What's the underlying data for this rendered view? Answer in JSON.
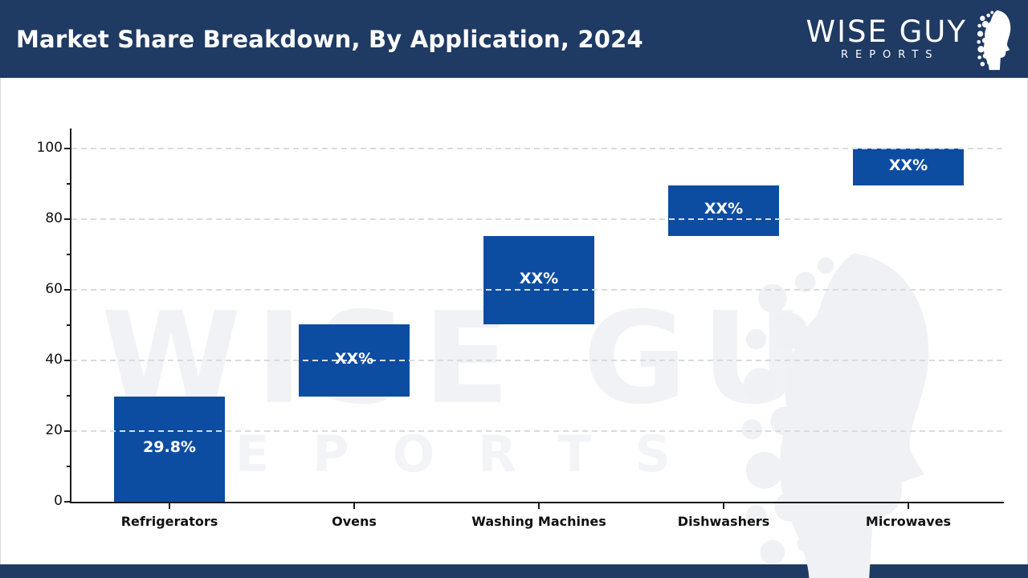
{
  "header": {
    "title": "Market Share Breakdown, By Application, 2024",
    "logo_line1": "WISE GUY",
    "logo_line2": "REPORTS"
  },
  "watermark": {
    "line1": "WISE GUY",
    "line2": "REPORTS"
  },
  "chart_data": {
    "type": "bar",
    "subtype": "floating-waterfall",
    "title": "Market Share Breakdown, By Application, 2024",
    "categories": [
      "Refrigerators",
      "Ovens",
      "Washing Machines",
      "Dishwashers",
      "Microwaves"
    ],
    "segments": [
      {
        "category": "Refrigerators",
        "start": 0,
        "end": 29.8,
        "label": "29.8%"
      },
      {
        "category": "Ovens",
        "start": 29.8,
        "end": 50.2,
        "label": "XX%"
      },
      {
        "category": "Washing Machines",
        "start": 50.2,
        "end": 75.2,
        "label": "XX%"
      },
      {
        "category": "Dishwashers",
        "start": 75.2,
        "end": 89.6,
        "label": "XX%"
      },
      {
        "category": "Microwaves",
        "start": 89.6,
        "end": 100,
        "label": "XX%"
      }
    ],
    "xlabel": "",
    "ylabel": "",
    "ylim": [
      0,
      100
    ],
    "yticks": [
      0,
      20,
      40,
      60,
      80,
      100
    ],
    "minor_yticks": [
      10,
      30,
      50,
      70,
      90
    ],
    "grid": "horizontal-dashed-over-bars",
    "legend": "none",
    "colors": {
      "bar": "#0d4da1",
      "bar_label": "#ffffff",
      "grid": "#d9dbde",
      "axis": "#1a1a1a",
      "header_bg": "#1f3a63",
      "footer_bg": "#1f3a63",
      "watermark": "#f1f2f5"
    }
  }
}
